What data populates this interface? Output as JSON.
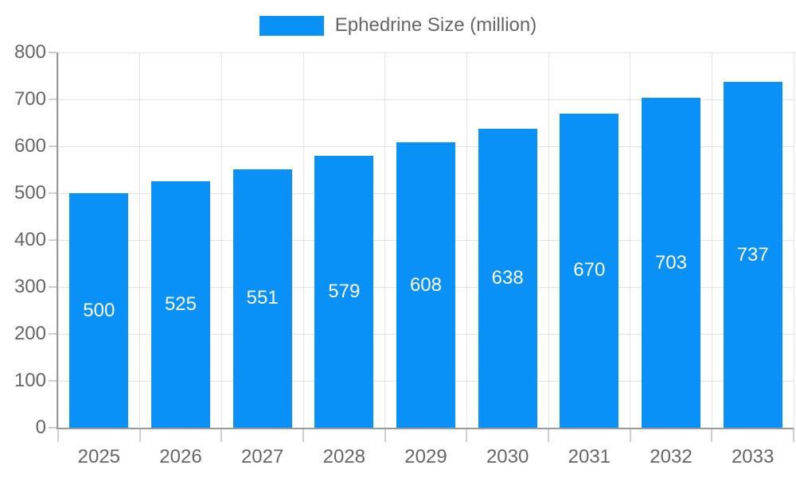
{
  "chart_data": {
    "type": "bar",
    "title": "Ephedrine Size (million)",
    "legend_position": "top",
    "categories": [
      "2025",
      "2026",
      "2027",
      "2028",
      "2029",
      "2030",
      "2031",
      "2032",
      "2033"
    ],
    "series": [
      {
        "name": "Ephedrine Size (million)",
        "values": [
          500,
          525,
          551,
          579,
          608,
          638,
          670,
          703,
          737
        ]
      }
    ],
    "value_labels_shown": true,
    "xlabel": "",
    "ylabel": "",
    "ylim": [
      0,
      800
    ],
    "ytick_step": 100,
    "grid": true,
    "colors": {
      "bar": "#0a91f8",
      "value_label": "#ffffff",
      "axis_text": "#666666",
      "gridline": "#e3e3e3",
      "axis_line": "#9a9a9a",
      "tick_mark": "#cfcfcf",
      "background": "#ffffff"
    }
  }
}
